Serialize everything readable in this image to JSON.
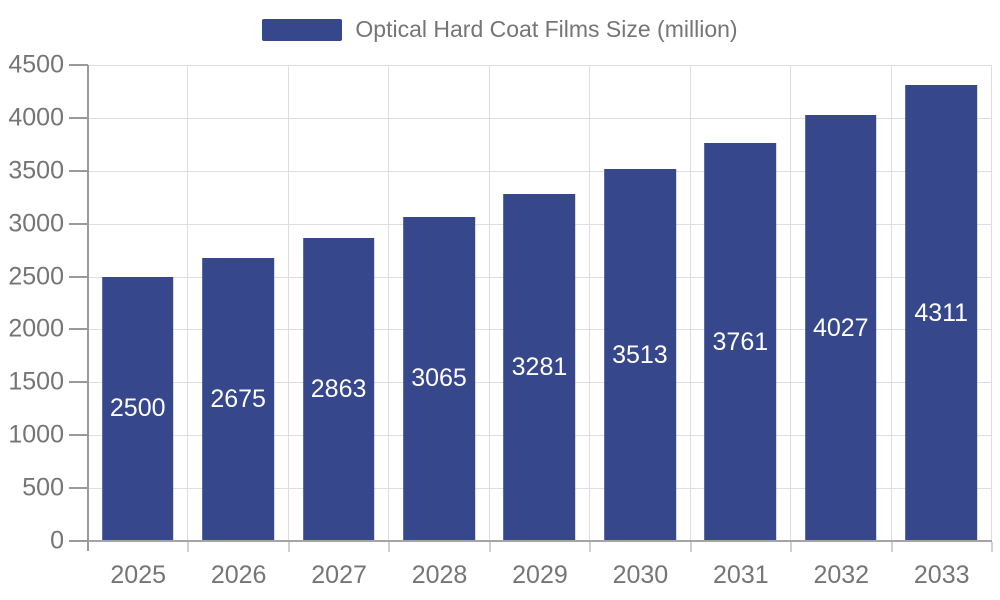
{
  "legend": {
    "label": "Optical Hard Coat Films Size (million)"
  },
  "chart_data": {
    "type": "bar",
    "title": "Optical Hard Coat Films Size (million)",
    "series_name": "Optical Hard Coat Films Size (million)",
    "categories": [
      "2025",
      "2026",
      "2027",
      "2028",
      "2029",
      "2030",
      "2031",
      "2032",
      "2033"
    ],
    "values": [
      2500,
      2675,
      2863,
      3065,
      3281,
      3513,
      3761,
      4027,
      4311
    ],
    "xlabel": "",
    "ylabel": "",
    "ylim": [
      0,
      4500
    ],
    "yticks": [
      0,
      500,
      1000,
      1500,
      2000,
      2500,
      3000,
      3500,
      4000,
      4500
    ],
    "grid": true,
    "legend_position": "top",
    "bar_color": "#36478B",
    "value_label_color": "#ffffff",
    "axis_color": "#9a9a9a",
    "h_gridline_color": "#dfdfe3",
    "v_gridline_color": "#dddde6",
    "tick_label_color": "#757575",
    "legend_text_color": "#757575"
  }
}
